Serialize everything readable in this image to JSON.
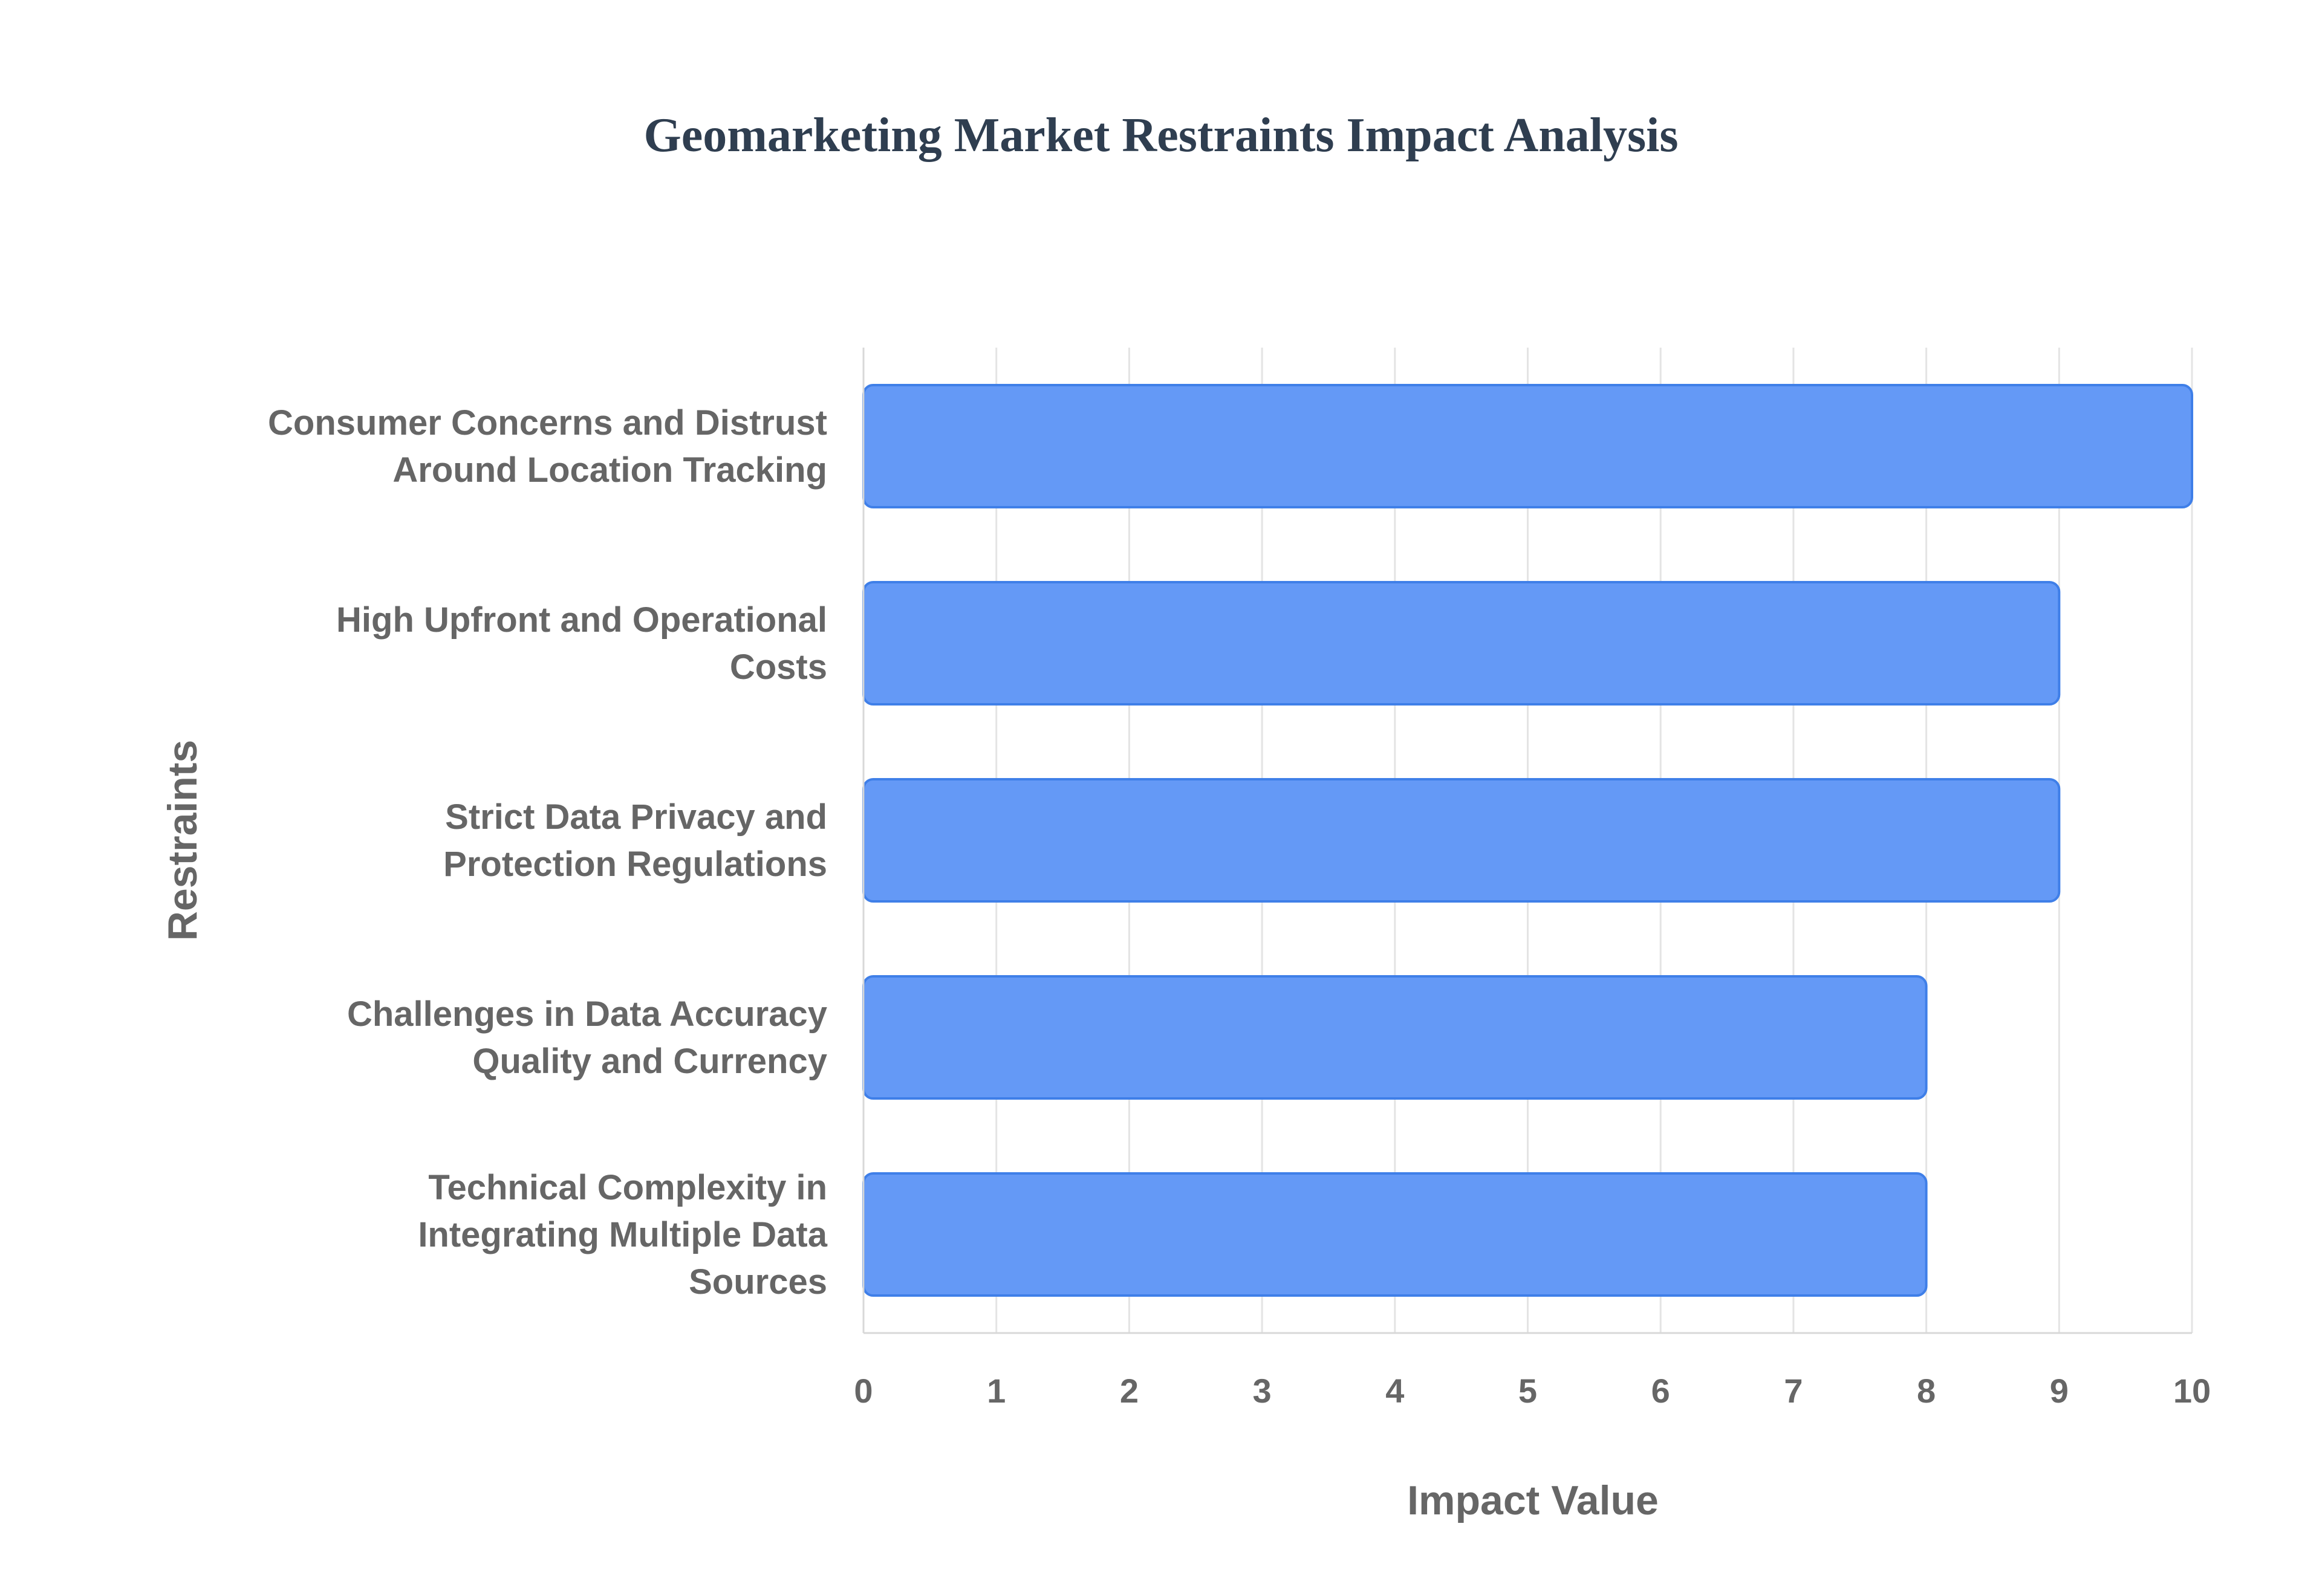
{
  "chart_data": {
    "type": "bar",
    "orientation": "horizontal",
    "title": "Geomarketing Market Restraints Impact Analysis",
    "xlabel": "Impact Value",
    "ylabel": "Restraints",
    "xlim": [
      0,
      10
    ],
    "x_ticks": [
      "0",
      "1",
      "2",
      "3",
      "4",
      "5",
      "6",
      "7",
      "8",
      "9",
      "10"
    ],
    "grid": "vertical",
    "legend": "none",
    "categories": [
      [
        "Consumer Concerns and Distrust",
        "Around Location Tracking"
      ],
      [
        "High Upfront and Operational",
        "Costs"
      ],
      [
        "Strict Data Privacy and",
        "Protection Regulations"
      ],
      [
        "Challenges in Data Accuracy",
        "Quality and Currency"
      ],
      [
        "Technical Complexity in",
        "Integrating Multiple Data",
        "Sources"
      ]
    ],
    "values": [
      10,
      9,
      9,
      8,
      8
    ],
    "colors": {
      "bar_fill": "#6499f6",
      "bar_stroke": "#3f7fe8",
      "title": "#2f3e50",
      "text": "#666666",
      "grid": "#e4e4e4"
    }
  }
}
